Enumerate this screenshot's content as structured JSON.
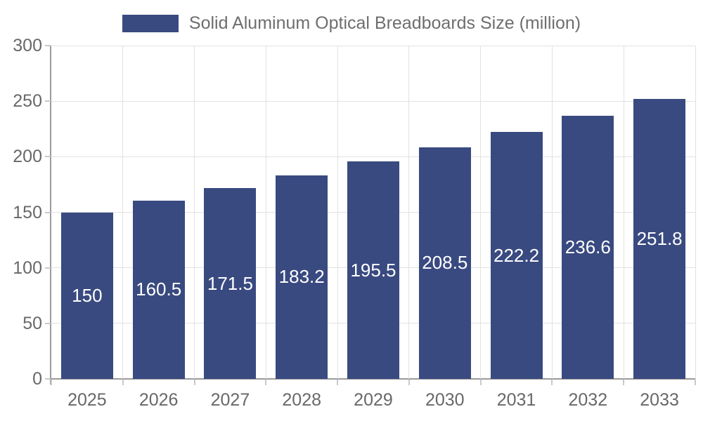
{
  "chart_data": {
    "type": "bar",
    "legend": "Solid Aluminum Optical Breadboards Size (million)",
    "categories": [
      "2025",
      "2026",
      "2027",
      "2028",
      "2029",
      "2030",
      "2031",
      "2032",
      "2033"
    ],
    "values": [
      150,
      160.5,
      171.5,
      183.2,
      195.5,
      208.5,
      222.2,
      236.6,
      251.8
    ],
    "value_labels": [
      "150",
      "160.5",
      "171.5",
      "183.2",
      "195.5",
      "208.5",
      "222.2",
      "236.6",
      "251.8"
    ],
    "ylim": [
      0,
      300
    ],
    "yticks": [
      0,
      50,
      100,
      150,
      200,
      250,
      300
    ],
    "grid": true,
    "legend_position": "top",
    "colors": {
      "bar": "#394A80",
      "bar_label_text": "#ffffff",
      "axis_text": "#686868",
      "legend_text": "#6e6e6e",
      "gridline": "#e2e2e2",
      "axis_line": "#9a9a9a",
      "tick_mark": "#c9c9c9",
      "background": "#ffffff"
    }
  }
}
